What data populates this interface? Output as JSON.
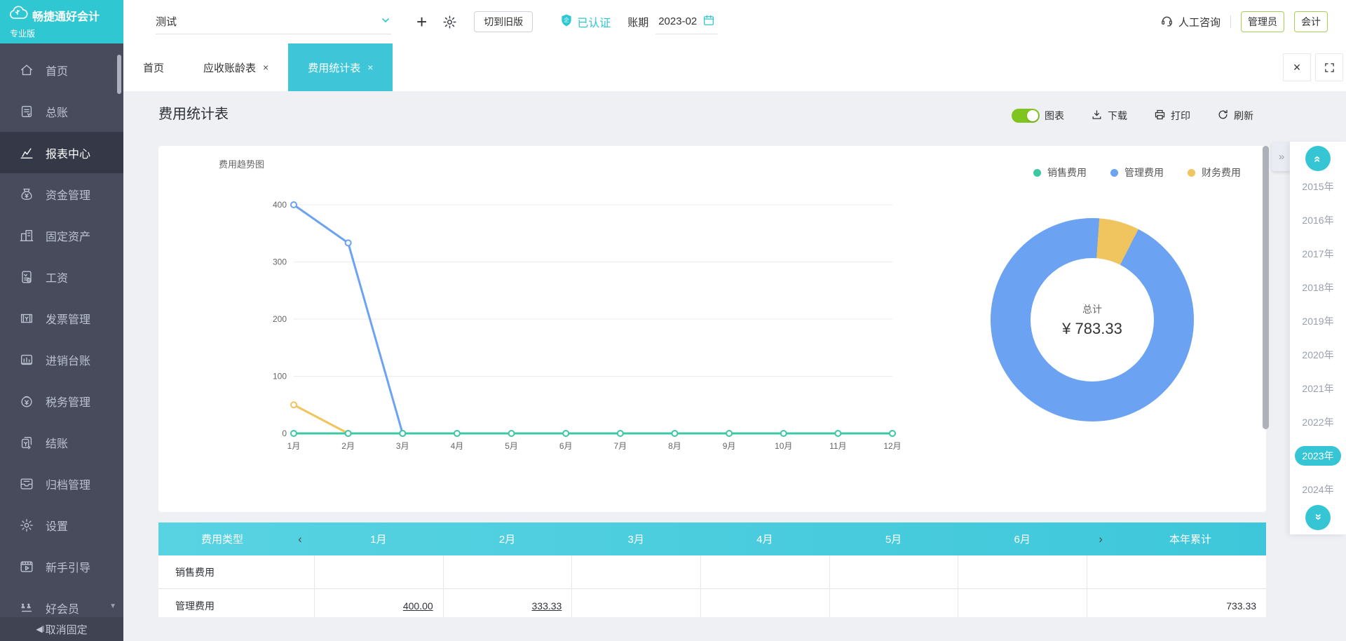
{
  "brand": {
    "title": "畅捷通好会计",
    "edition": "专业版"
  },
  "topbar": {
    "workspace": "测试",
    "switch_old_label": "切到旧版",
    "certified_label": "已认证",
    "period_label": "账期",
    "period_value": "2023-02",
    "support_label": "人工咨询",
    "admin_label": "管理员",
    "accountant_label": "会计"
  },
  "tabbar": {
    "tabs": [
      {
        "label": "首页",
        "closable": false,
        "active": false
      },
      {
        "label": "应收账龄表",
        "closable": true,
        "active": false
      },
      {
        "label": "费用统计表",
        "closable": true,
        "active": true
      }
    ]
  },
  "sidebar": {
    "items": [
      {
        "label": "首页",
        "icon": "home-icon",
        "active": false
      },
      {
        "label": "总账",
        "icon": "ledger-icon",
        "active": false
      },
      {
        "label": "报表中心",
        "icon": "report-center-icon",
        "active": true
      },
      {
        "label": "资金管理",
        "icon": "funds-icon",
        "active": false
      },
      {
        "label": "固定资产",
        "icon": "fixed-assets-icon",
        "active": false
      },
      {
        "label": "工资",
        "icon": "payroll-icon",
        "active": false
      },
      {
        "label": "发票管理",
        "icon": "invoice-icon",
        "active": false
      },
      {
        "label": "进销台账",
        "icon": "inventory-ledger-icon",
        "active": false
      },
      {
        "label": "税务管理",
        "icon": "tax-icon",
        "active": false
      },
      {
        "label": "结账",
        "icon": "closing-icon",
        "active": false
      },
      {
        "label": "归档管理",
        "icon": "archive-icon",
        "active": false
      },
      {
        "label": "设置",
        "icon": "settings-icon",
        "active": false
      },
      {
        "label": "新手引导",
        "icon": "guide-icon",
        "active": false
      },
      {
        "label": "好会员",
        "icon": "member-icon",
        "active": false
      }
    ],
    "unpin_label": "取消固定"
  },
  "page": {
    "title": "费用统计表",
    "chart_toggle_label": "图表",
    "download_label": "下载",
    "print_label": "打印",
    "refresh_label": "刷新"
  },
  "chart_data": [
    {
      "type": "line",
      "title": "费用趋势图",
      "categories": [
        "1月",
        "2月",
        "3月",
        "4月",
        "5月",
        "6月",
        "7月",
        "8月",
        "9月",
        "10月",
        "11月",
        "12月"
      ],
      "series": [
        {
          "name": "销售费用",
          "color": "#3cc8a5",
          "values": [
            0,
            0,
            0,
            0,
            0,
            0,
            0,
            0,
            0,
            0,
            0,
            0
          ]
        },
        {
          "name": "管理费用",
          "color": "#6ba2f1",
          "values": [
            400,
            333.33,
            0,
            0,
            0,
            0,
            0,
            0,
            0,
            0,
            0,
            0
          ]
        },
        {
          "name": "财务费用",
          "color": "#f0c45f",
          "values": [
            50,
            0,
            0,
            0,
            0,
            0,
            0,
            0,
            0,
            0,
            0,
            0
          ]
        }
      ],
      "ylim": [
        0,
        400
      ],
      "yticks": [
        0,
        100,
        200,
        300,
        400
      ],
      "grid": true,
      "legend_position": "top-right"
    },
    {
      "type": "pie",
      "donut": true,
      "center_label": "总计",
      "center_value": "¥ 783.33",
      "slices": [
        {
          "name": "销售费用",
          "value": 0,
          "color": "#3cc8a5"
        },
        {
          "name": "管理费用",
          "value": 733.33,
          "color": "#6ba2f1"
        },
        {
          "name": "财务费用",
          "value": 50,
          "color": "#f0c45f"
        }
      ]
    }
  ],
  "year_panel": {
    "years": [
      "2015年",
      "2016年",
      "2017年",
      "2018年",
      "2019年",
      "2020年",
      "2021年",
      "2022年",
      "2023年",
      "2024年"
    ],
    "selected": "2023年"
  },
  "expense_table": {
    "columns": [
      "费用类型",
      "1月",
      "2月",
      "3月",
      "4月",
      "5月",
      "6月",
      "本年累计"
    ],
    "prev_arrow": "‹",
    "next_arrow": "›",
    "rows": [
      {
        "name": "销售费用",
        "values": [
          "",
          "",
          "",
          "",
          "",
          "",
          ""
        ],
        "links": [
          false,
          false,
          false,
          false,
          false,
          false,
          false
        ]
      },
      {
        "name": "管理费用",
        "values": [
          "400.00",
          "333.33",
          "",
          "",
          "",
          "",
          "733.33"
        ],
        "links": [
          true,
          true,
          false,
          false,
          false,
          false,
          false
        ]
      }
    ]
  }
}
